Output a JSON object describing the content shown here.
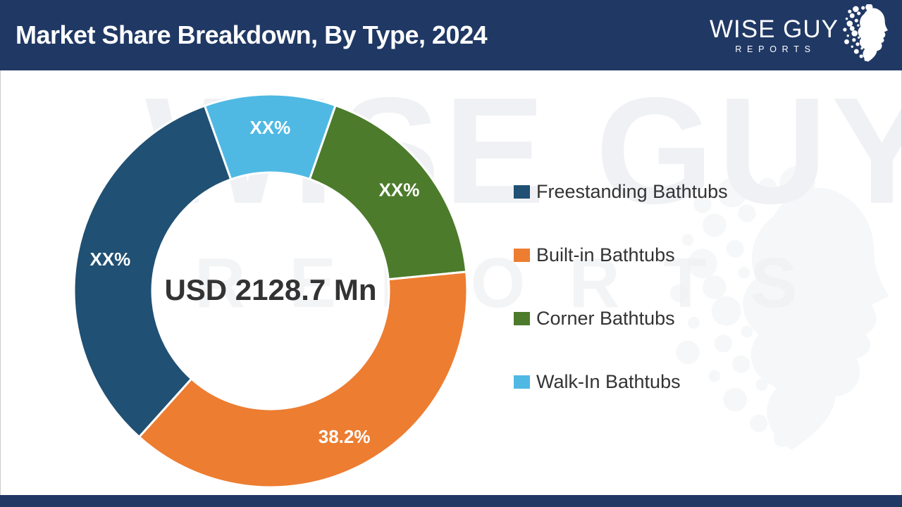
{
  "header": {
    "title": "Market Share Breakdown, By Type, 2024",
    "bg_color": "#203864",
    "logo": {
      "line1": "WISE GUY",
      "line2": "REPORTS"
    }
  },
  "watermark": {
    "line1": "WISE GUY",
    "line2": "REPORTS"
  },
  "chart_data": {
    "type": "donut",
    "title": "Market Share Breakdown, By Type, 2024",
    "center_label": "USD 2128.7 Mn",
    "legend_position": "right",
    "segments": [
      {
        "name": "Freestanding Bathtubs",
        "label": "XX%",
        "share_pct_est": 32.9,
        "color": "#205073"
      },
      {
        "name": "Built-in Bathtubs",
        "label": "38.2%",
        "share_pct_est": 38.2,
        "color": "#ED7D31"
      },
      {
        "name": "Corner Bathtubs",
        "label": "XX%",
        "share_pct_est": 18.1,
        "color": "#4C7B2B"
      },
      {
        "name": "Walk-In Bathtubs",
        "label": "XX%",
        "share_pct_est": 10.8,
        "color": "#4FB9E3"
      }
    ],
    "start_angle_deg": -19.6,
    "clockwise_order": [
      "Walk-In Bathtubs",
      "Corner Bathtubs",
      "Built-in Bathtubs",
      "Freestanding Bathtubs"
    ]
  }
}
